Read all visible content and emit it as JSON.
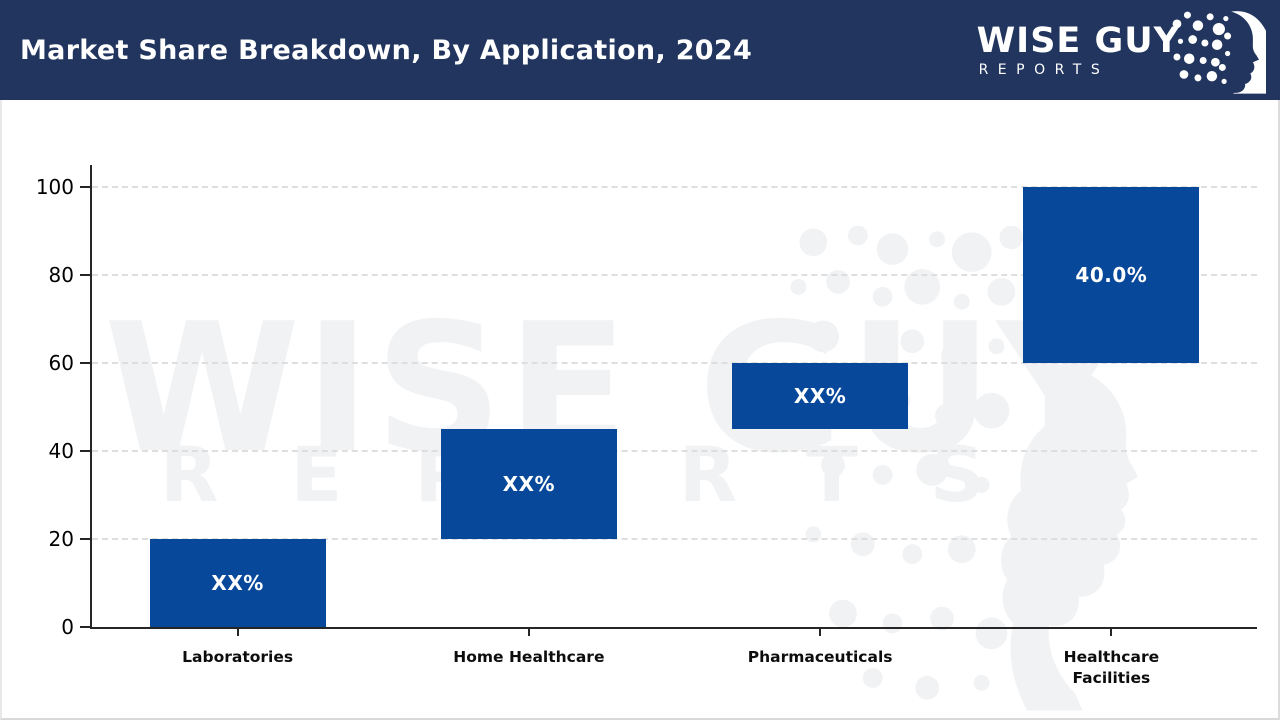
{
  "header": {
    "title": "Market Share Breakdown, By Application, 2024",
    "logo": {
      "line1": "WISE GUY",
      "line2": "REPORTS"
    }
  },
  "watermark": {
    "line1": "WISE GUY",
    "line2": "REPORTS"
  },
  "colors": {
    "header_bg": "#21355f",
    "bar_fill": "#07489a",
    "bar_label_text": "#ffffff",
    "gridline": "#dedede",
    "axis": "#262626",
    "watermark": "#f1f2f4"
  },
  "chart_data": {
    "type": "bar",
    "subtype": "waterfall-breakdown",
    "title": "Market Share Breakdown, By Application, 2024",
    "categories": [
      "Laboratories",
      "Home Healthcare",
      "Pharmaceuticals",
      "Healthcare Facilities"
    ],
    "category_label_lines": [
      [
        "Laboratories"
      ],
      [
        "Home Healthcare"
      ],
      [
        "Pharmaceuticals"
      ],
      [
        "Healthcare",
        "Facilities"
      ]
    ],
    "bars": [
      {
        "category": "Laboratories",
        "start": 0,
        "end": 20,
        "size_pct": 20,
        "label": "XX%"
      },
      {
        "category": "Home Healthcare",
        "start": 20,
        "end": 45,
        "size_pct": 25,
        "label": "XX%"
      },
      {
        "category": "Pharmaceuticals",
        "start": 45,
        "end": 60,
        "size_pct": 15,
        "label": "XX%"
      },
      {
        "category": "Healthcare Facilities",
        "start": 60,
        "end": 100,
        "size_pct": 40,
        "label": "40.0%"
      }
    ],
    "xlabel": "",
    "ylabel": "",
    "ylim": [
      0,
      100
    ],
    "yticks": [
      0,
      20,
      40,
      60,
      80,
      100
    ],
    "grid": "horizontal dashed",
    "legend": "none"
  }
}
